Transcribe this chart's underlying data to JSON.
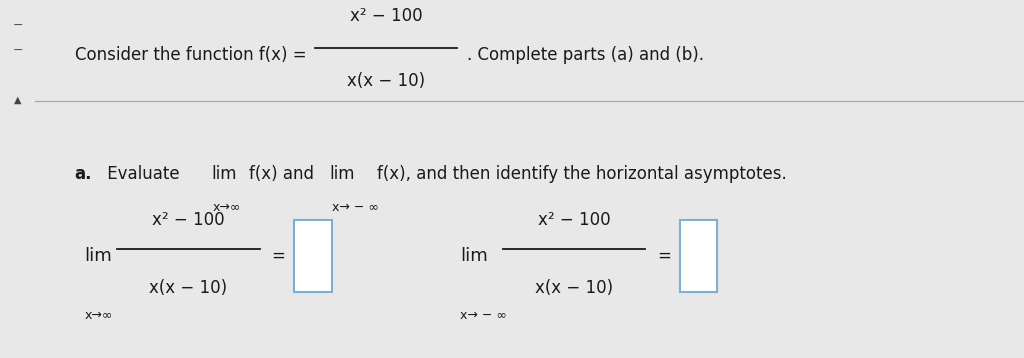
{
  "bg_top_color": "#e8e8e8",
  "bg_bottom_color": "#ffffff",
  "panel_color": "#ffffff",
  "text_color": "#1a1a1a",
  "separator_color": "#aaaaaa",
  "box_color": "#7ab0d4",
  "title_prefix": "Consider the function f(x) = ",
  "title_num": "x² − 100",
  "title_den": "x(x − 10)",
  "title_suffix": ". Complete parts (a) and (b).",
  "part_a_bold": "a.",
  "part_a_text": " Evaluate",
  "part_a_lim1": "lim",
  "part_a_sub1": "x→∞",
  "part_a_mid": "f(x) and",
  "part_a_lim2": "lim",
  "part_a_sub2": "x→ − ∞",
  "part_a_end": "f(x), and then identify the horizontal asymptotes.",
  "lim_label": "lim",
  "lim1_sub": "x→∞",
  "lim2_sub": "x→ − ∞",
  "frac_num": "x² − 100",
  "frac_den": "x(x − 10)"
}
